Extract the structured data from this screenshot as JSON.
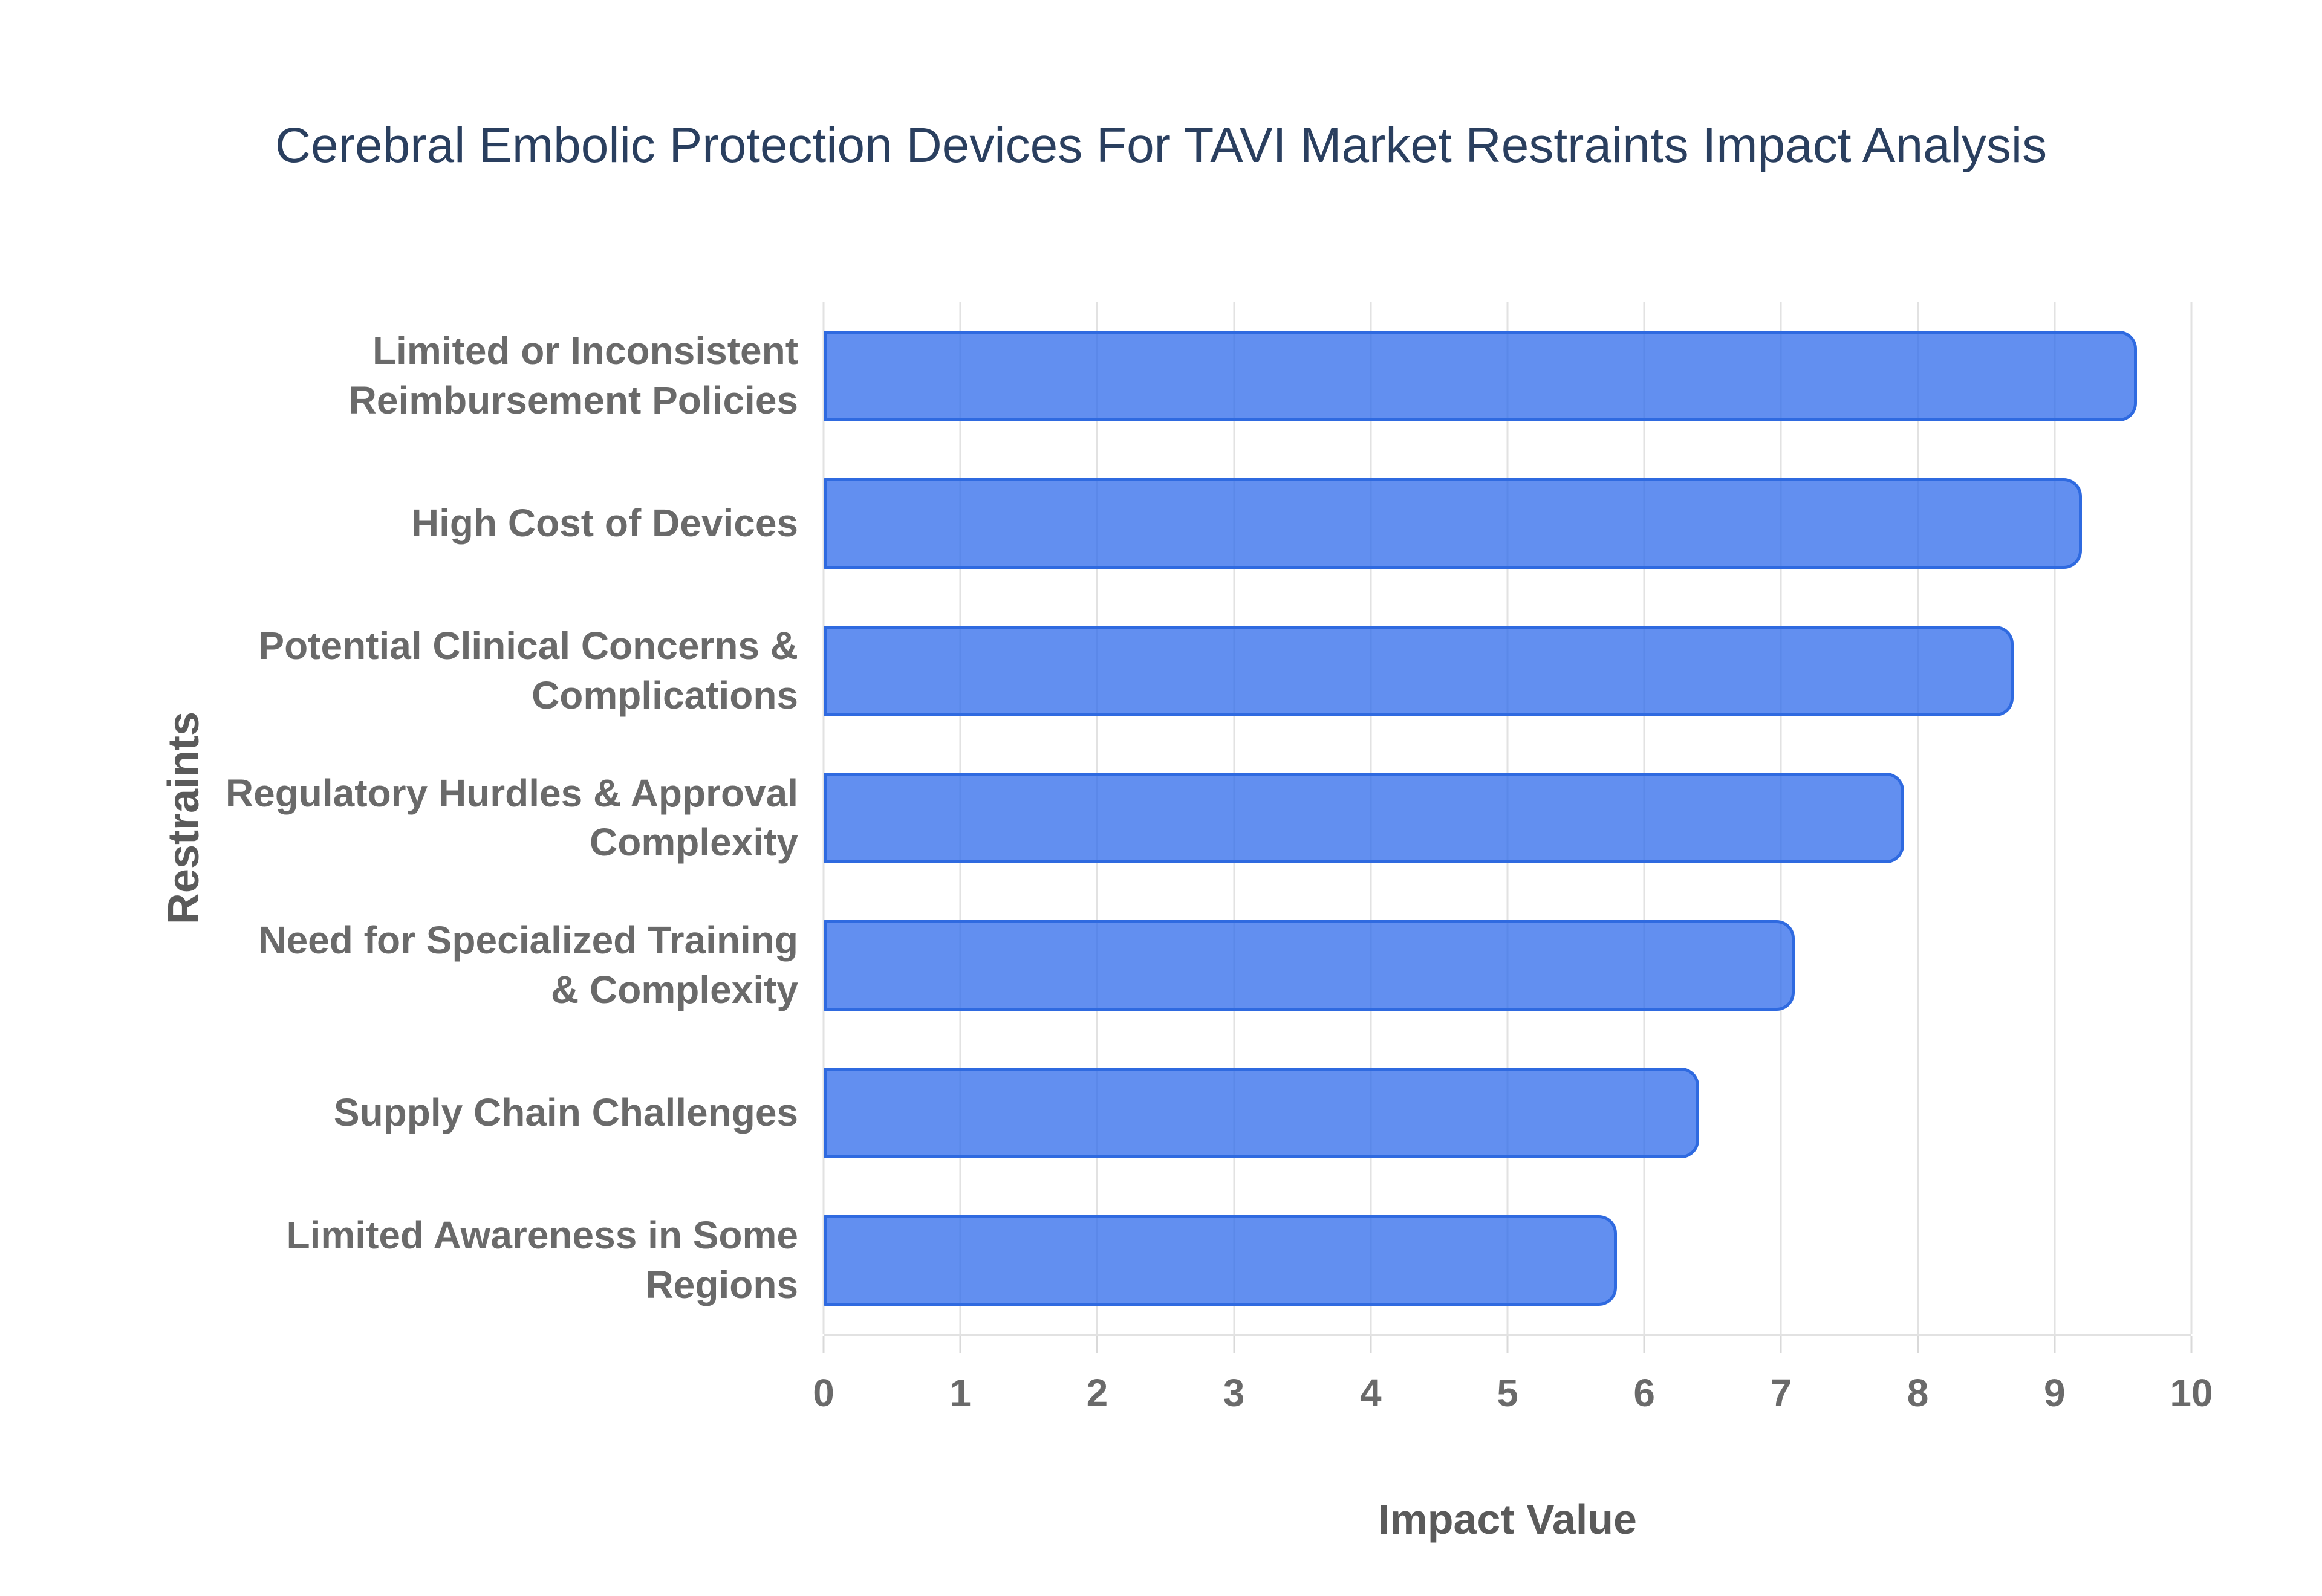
{
  "chart_data": {
    "type": "bar",
    "orientation": "horizontal",
    "title": "Cerebral Embolic Protection Devices For TAVI Market Restraints Impact Analysis",
    "categories": [
      "Limited or Inconsistent\nReimbursement Policies",
      "High Cost of Devices",
      "Potential Clinical Concerns &\nComplications",
      "Regulatory Hurdles & Approval\nComplexity",
      "Need for Specialized Training\n& Complexity",
      "Supply Chain Challenges",
      "Limited Awareness in Some\nRegions"
    ],
    "values": [
      9.6,
      9.2,
      8.7,
      7.9,
      7.1,
      6.4,
      5.8
    ],
    "xlabel": "Impact Value",
    "ylabel": "Restraints",
    "xlim": [
      0,
      10
    ],
    "x_ticks": [
      0,
      1,
      2,
      3,
      4,
      5,
      6,
      7,
      8,
      9,
      10
    ],
    "grid": true,
    "legend": "none"
  },
  "colors": {
    "title-text": "#2a3f5f",
    "label-text": "#6a6a6a",
    "axis-title-text": "#5a5a5a",
    "grid-line": "#e2e2e2",
    "tick-mark": "#d9d9d9",
    "bar-fill": "rgba(45,105,235,0.75)",
    "bar-border": "#2f6ae0"
  }
}
